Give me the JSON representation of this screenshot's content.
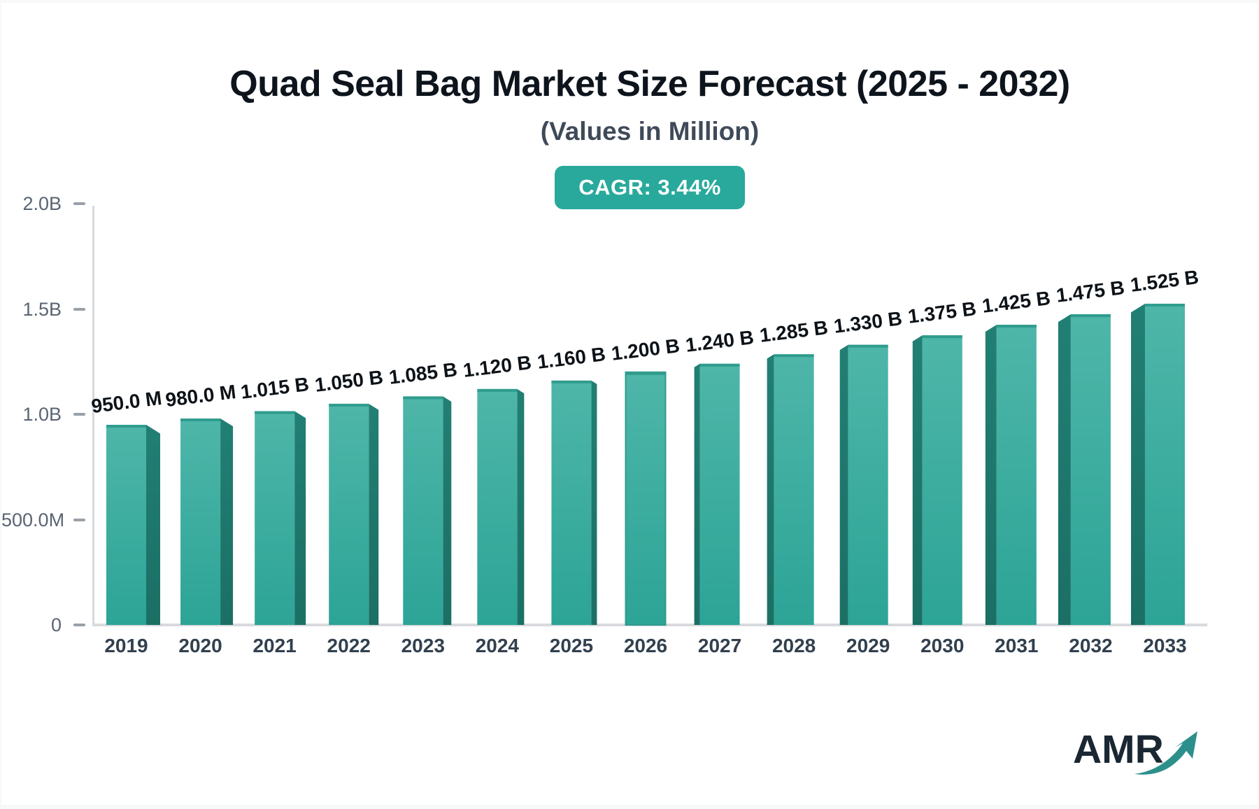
{
  "header": {
    "title": "Quad Seal Bag Market Size Forecast (2025 - 2032)",
    "subtitle": "(Values in Million)",
    "cagr_badge": "CAGR: 3.44%"
  },
  "chart_data": {
    "type": "bar",
    "title": "Quad Seal Bag Market Size Forecast (2025 - 2032)",
    "subtitle": "(Values in Million)",
    "cagr_percent": 3.44,
    "categories": [
      "2019",
      "2020",
      "2021",
      "2022",
      "2023",
      "2024",
      "2025",
      "2026",
      "2027",
      "2028",
      "2029",
      "2030",
      "2031",
      "2032",
      "2033"
    ],
    "values_millions": [
      950,
      980,
      1015,
      1050,
      1085,
      1120,
      1160,
      1200,
      1240,
      1285,
      1330,
      1375,
      1425,
      1475,
      1525
    ],
    "value_labels": [
      "950.0 M",
      "980.0 M",
      "1.015 B",
      "1.050 B",
      "1.085 B",
      "1.120 B",
      "1.160 B",
      "1.200 B",
      "1.240 B",
      "1.285 B",
      "1.330 B",
      "1.375 B",
      "1.425 B",
      "1.475 B",
      "1.525 B"
    ],
    "y_ticks": [
      {
        "label": "0",
        "value": 0
      },
      {
        "label": "500.0M",
        "value": 500
      },
      {
        "label": "1.0B",
        "value": 1000
      },
      {
        "label": "1.5B",
        "value": 1500
      },
      {
        "label": "2.0B",
        "value": 2000
      }
    ],
    "ylim_millions": [
      0,
      2000
    ],
    "xlabel": "",
    "ylabel": "",
    "grid": false,
    "legend": "none",
    "bar_style_3d": true,
    "colors": {
      "face_top": "#4eb6a9",
      "face_bottom": "#2ca496",
      "face_edge": "#2f9c8e",
      "side_dark": "#1e7b70",
      "axis_line": "#d6d9dd",
      "tick_label": "#5a6472",
      "x_label": "#32404e",
      "value_label": "#0c1217",
      "accent": "#28a99c"
    }
  },
  "logo": {
    "text": "AMR",
    "arrow_icon": "growth-arrow-icon",
    "text_color": "#1a2733",
    "arrow_color": "#2d8f8b"
  }
}
